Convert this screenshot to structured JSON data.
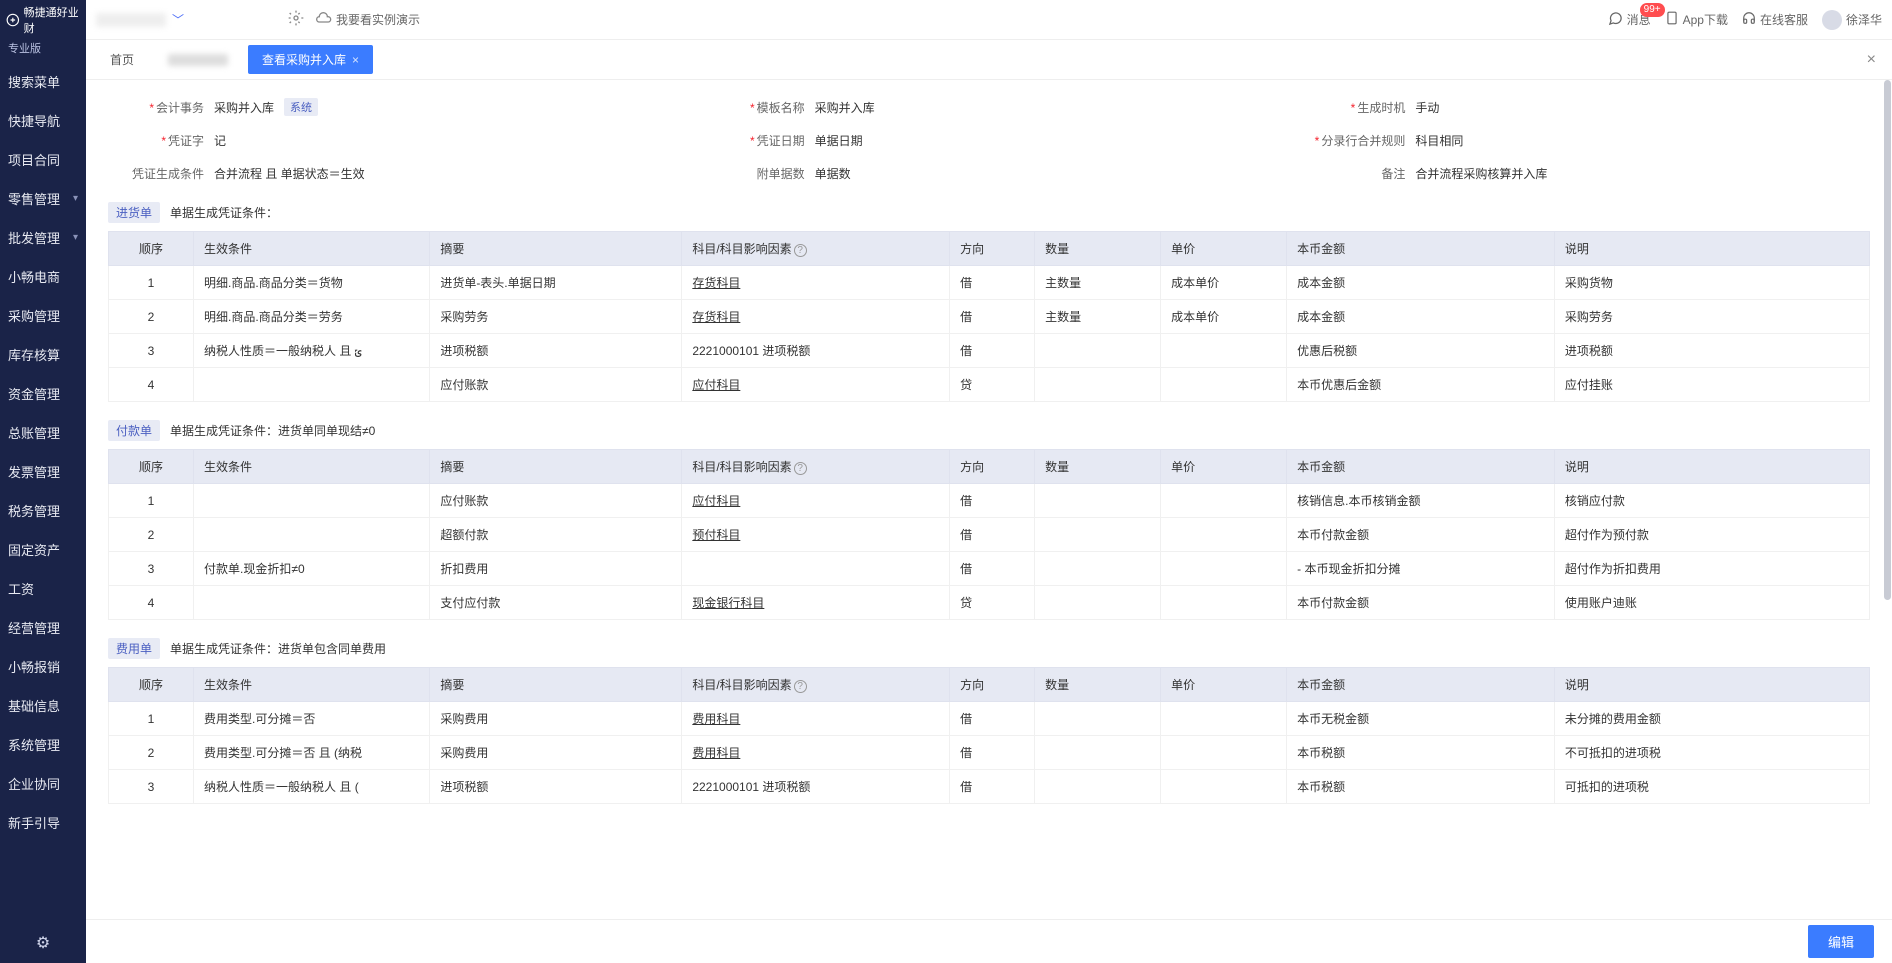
{
  "brand": {
    "name": "畅捷通好业财",
    "edition": "专业版"
  },
  "sidebar": {
    "items": [
      {
        "label": "搜索菜单"
      },
      {
        "label": "快捷导航"
      },
      {
        "label": "项目合同"
      },
      {
        "label": "零售管理",
        "expandable": true
      },
      {
        "label": "批发管理",
        "expandable": true
      },
      {
        "label": "小畅电商"
      },
      {
        "label": "采购管理"
      },
      {
        "label": "库存核算"
      },
      {
        "label": "资金管理"
      },
      {
        "label": "总账管理"
      },
      {
        "label": "发票管理"
      },
      {
        "label": "税务管理"
      },
      {
        "label": "固定资产"
      },
      {
        "label": "工资"
      },
      {
        "label": "经营管理"
      },
      {
        "label": "小畅报销"
      },
      {
        "label": "基础信息"
      },
      {
        "label": "系统管理"
      },
      {
        "label": "企业协同"
      },
      {
        "label": "新手引导"
      }
    ]
  },
  "topbar": {
    "demo_text": "我要看实例演示",
    "right": {
      "msg": "消息",
      "badge": "99+",
      "download": "App下载",
      "service": "在线客服",
      "user": "徐泽华"
    }
  },
  "tabs": {
    "home": "首页",
    "active": "查看采购并入库"
  },
  "info": {
    "row1": {
      "a": {
        "label": "会计事务",
        "value": "采购并入库",
        "tag": "系统",
        "required": true
      },
      "b": {
        "label": "模板名称",
        "value": "采购并入库",
        "required": true
      },
      "c": {
        "label": "生成时机",
        "value": "手动",
        "required": true
      }
    },
    "row2": {
      "a": {
        "label": "凭证字",
        "value": "记",
        "required": true
      },
      "b": {
        "label": "凭证日期",
        "value": "单据日期",
        "required": true
      },
      "c": {
        "label": "分录行合并规则",
        "value": "科目相同",
        "required": true
      }
    },
    "row3": {
      "a": {
        "label": "凭证生成条件",
        "value": "合并流程 且 单据状态＝生效"
      },
      "b": {
        "label": "附单据数",
        "value": "单据数"
      },
      "c": {
        "label": "备注",
        "value": "合并流程采购核算并入库"
      }
    }
  },
  "columns": {
    "seq": "顺序",
    "cond": "生效条件",
    "summary": "摘要",
    "subject": "科目/科目影响因素",
    "subject_help": "?",
    "dir": "方向",
    "qty": "数量",
    "price": "单价",
    "amount": "本币金额",
    "desc": "说明"
  },
  "colwidths": {
    "seq": 54,
    "cond": 150,
    "summary": 160,
    "subject": 170,
    "dir": 54,
    "qty": 80,
    "price": 80,
    "amount": 170,
    "desc": 200
  },
  "sections": [
    {
      "tag": "进货单",
      "cond_label": "单据生成凭证条件：",
      "cond_value": "",
      "rows": [
        {
          "seq": "1",
          "cond": "明细.商品.商品分类＝货物",
          "summary": "进货单-表头.单据日期",
          "subject": "存货科目",
          "subject_link": true,
          "dir": "借",
          "qty": "主数量",
          "price": "成本单价",
          "amount": "成本金额",
          "desc": "采购货物"
        },
        {
          "seq": "2",
          "cond": "明细.商品.商品分类＝劳务",
          "summary": "采购劳务",
          "subject": "存货科目",
          "subject_link": true,
          "dir": "借",
          "qty": "主数量",
          "price": "成本单价",
          "amount": "成本金额",
          "desc": "采购劳务"
        },
        {
          "seq": "3",
          "cond": "纳税人性质＝一般纳税人 且 ݶ",
          "summary": "进项税额",
          "subject": "2221000101 进项税额",
          "dir": "借",
          "qty": "",
          "price": "",
          "amount": "优惠后税额",
          "desc": "进项税额"
        },
        {
          "seq": "4",
          "cond": "",
          "summary": "应付账款",
          "subject": "应付科目",
          "subject_link": true,
          "dir": "贷",
          "qty": "",
          "price": "",
          "amount": "本币优惠后金额",
          "desc": "应付挂账"
        }
      ]
    },
    {
      "tag": "付款单",
      "cond_label": "单据生成凭证条件：",
      "cond_value": "进货单同单现结≠0",
      "rows": [
        {
          "seq": "1",
          "cond": "",
          "summary": "应付账款",
          "subject": "应付科目",
          "subject_link": true,
          "dir": "借",
          "qty": "",
          "price": "",
          "amount": "核销信息.本币核销金额",
          "desc": "核销应付款"
        },
        {
          "seq": "2",
          "cond": "",
          "summary": "超额付款",
          "subject": "预付科目",
          "subject_link": true,
          "dir": "借",
          "qty": "",
          "price": "",
          "amount": "本币付款金额",
          "desc": "超付作为预付款"
        },
        {
          "seq": "3",
          "cond": "付款单.现金折扣≠0",
          "summary": "折扣费用",
          "subject": "",
          "dir": "借",
          "qty": "",
          "price": "",
          "amount": "- 本币现金折扣分摊",
          "desc": "超付作为折扣费用"
        },
        {
          "seq": "4",
          "cond": "",
          "summary": "支付应付款",
          "subject": "现金银行科目",
          "subject_link": true,
          "dir": "贷",
          "qty": "",
          "price": "",
          "amount": "本币付款金额",
          "desc": "使用账户迪账"
        }
      ]
    },
    {
      "tag": "费用单",
      "cond_label": "单据生成凭证条件：",
      "cond_value": "进货单包含同单费用",
      "rows": [
        {
          "seq": "1",
          "cond": "费用类型.可分摊＝否",
          "summary": "采购费用",
          "subject": "费用科目",
          "subject_link": true,
          "dir": "借",
          "qty": "",
          "price": "",
          "amount": "本币无税金额",
          "desc": "未分摊的费用金额"
        },
        {
          "seq": "2",
          "cond": "费用类型.可分摊＝否 且 (纳税",
          "summary": "采购费用",
          "subject": "费用科目",
          "subject_link": true,
          "dir": "借",
          "qty": "",
          "price": "",
          "amount": "本币税额",
          "desc": "不可抵扣的进项税"
        },
        {
          "seq": "3",
          "cond": "纳税人性质＝一般纳税人 且 (",
          "summary": "进项税额",
          "subject": "2221000101 进项税额",
          "dir": "借",
          "qty": "",
          "price": "",
          "amount": "本币税额",
          "desc": "可抵扣的进项税"
        }
      ]
    }
  ],
  "footer": {
    "edit": "编辑"
  }
}
